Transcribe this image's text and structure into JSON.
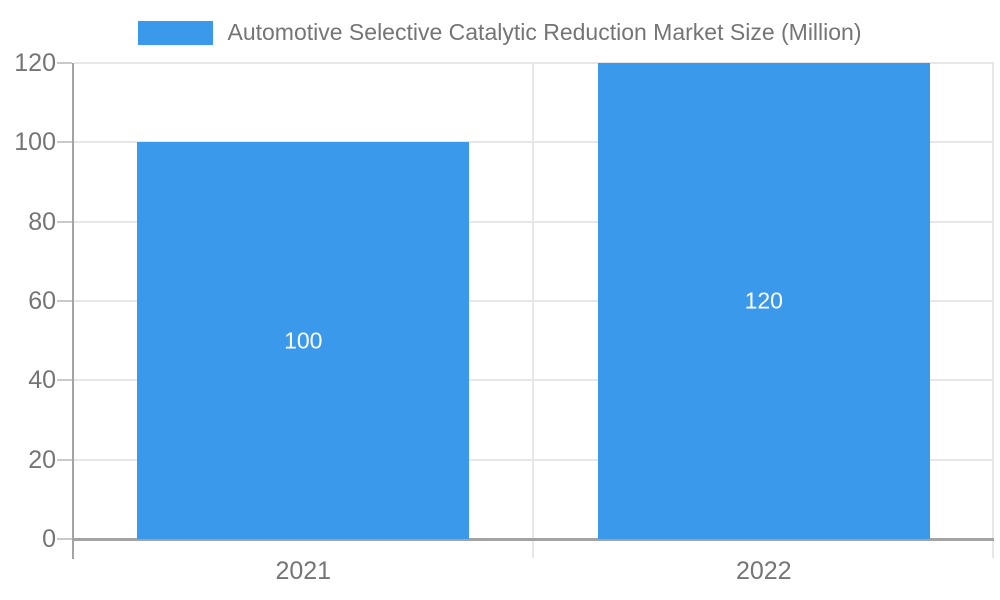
{
  "chart_data": {
    "type": "bar",
    "title": "Automotive Selective Catalytic Reduction Market Size (Million)",
    "categories": [
      "2021",
      "2022"
    ],
    "values": [
      100,
      120
    ],
    "value_labels": [
      "100",
      "120"
    ],
    "xlabel": "",
    "ylabel": "",
    "ylim": [
      0,
      120
    ],
    "yticks": [
      0,
      20,
      40,
      60,
      80,
      100,
      120
    ],
    "grid": true,
    "legend_position": "top"
  },
  "legend": {
    "label": "Automotive Selective Catalytic Reduction Market Size (Million)"
  },
  "colors": {
    "bar": "#3B99EC",
    "bar_label": "#FFFFFF",
    "axis": "#A3A3A3",
    "grid": "#E7E7E7",
    "tick": "#C9C9C9",
    "text": "#757575"
  }
}
